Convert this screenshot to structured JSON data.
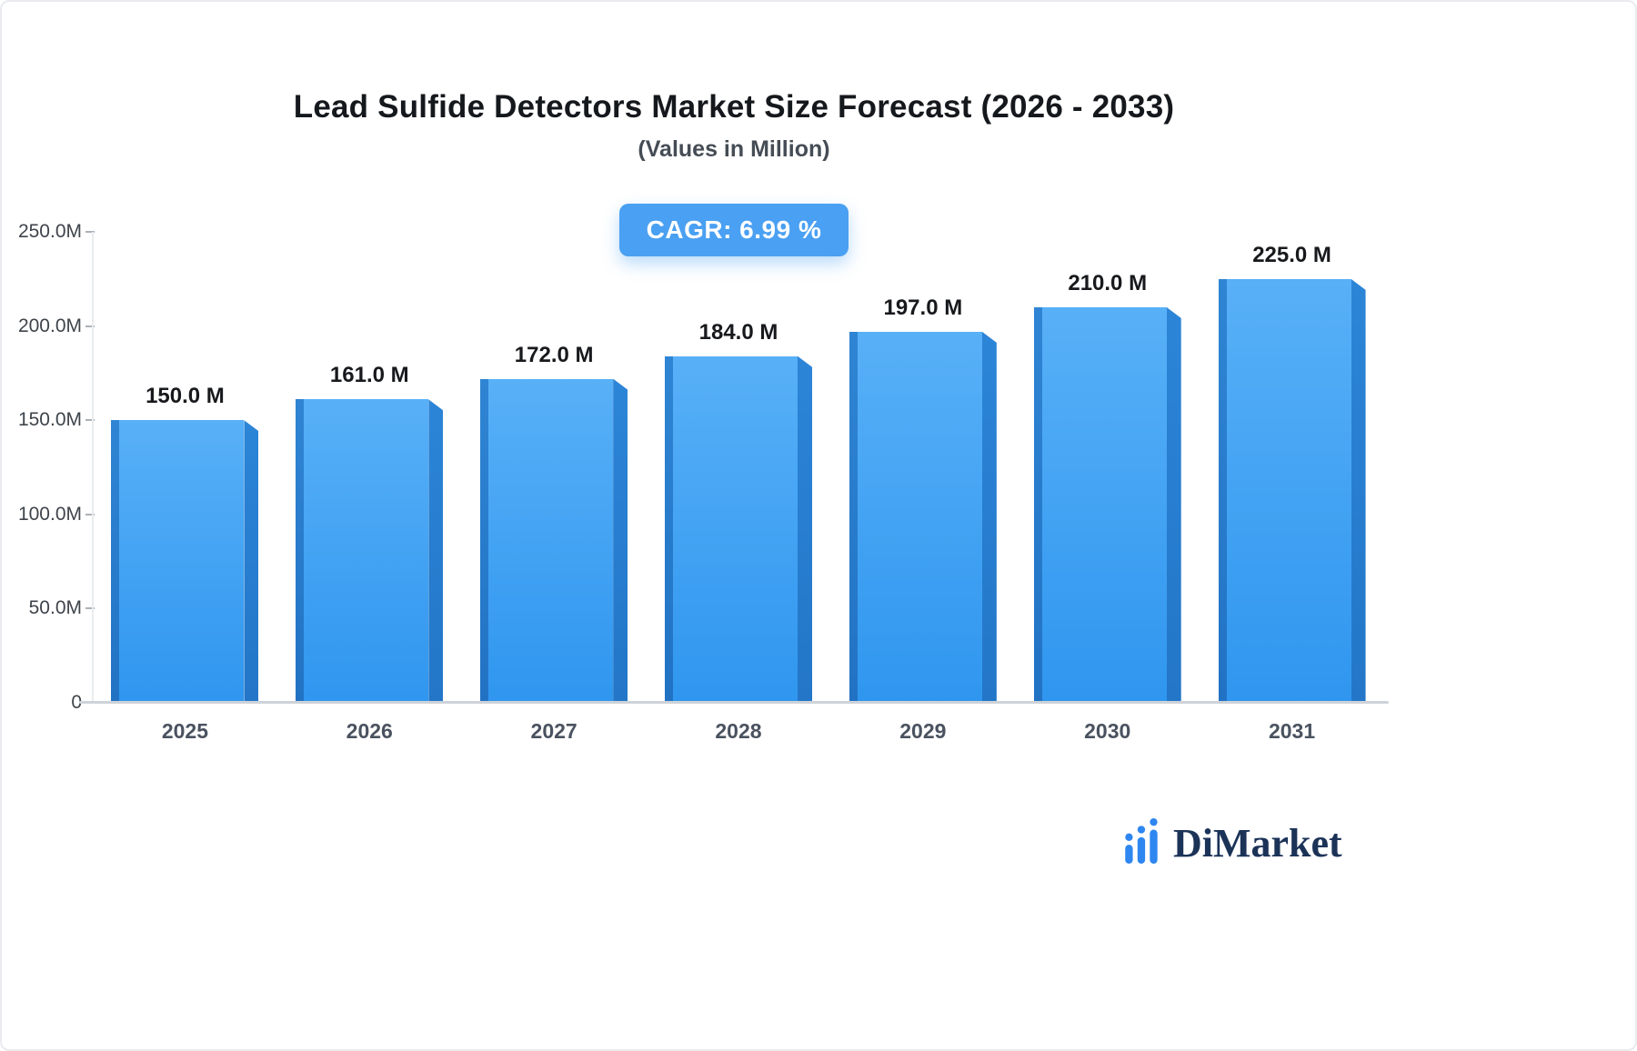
{
  "header": {
    "title": "Lead Sulfide Detectors Market Size Forecast (2026 - 2033)",
    "subtitle": "(Values in Million)"
  },
  "badge": {
    "label": "CAGR: 6.99 %"
  },
  "chart_data": {
    "type": "bar",
    "title": "Lead Sulfide Detectors Market Size Forecast (2026 - 2033)",
    "subtitle": "(Values in Million)",
    "unit": "Million",
    "categories": [
      "2025",
      "2026",
      "2027",
      "2028",
      "2029",
      "2030",
      "2031"
    ],
    "values": [
      150.0,
      161.0,
      172.0,
      184.0,
      197.0,
      210.0,
      225.0
    ],
    "value_labels": [
      "150.0 M",
      "161.0 M",
      "172.0 M",
      "184.0 M",
      "197.0 M",
      "210.0 M",
      "225.0 M"
    ],
    "ylim": [
      0,
      250
    ],
    "y_ticks": [
      {
        "value": 250,
        "label": "250.0M"
      },
      {
        "value": 200,
        "label": "200.0M"
      },
      {
        "value": 150,
        "label": "150.0M"
      },
      {
        "value": 100,
        "label": "100.0M"
      },
      {
        "value": 50,
        "label": "50.0M"
      },
      {
        "value": 0,
        "label": "0"
      }
    ],
    "grid": false,
    "legend_position": "none",
    "bar_colors": {
      "face_top": "#58b0f7",
      "face_bottom": "#2f96ef",
      "left_edge": "#2272c4",
      "right_side": "#2c85d7"
    },
    "cagr": "6.99 %"
  },
  "logo": {
    "text": "DiMarket",
    "icon": "bar-chart-logo-icon",
    "color": "#1c3358",
    "accent": "#2e86f0"
  }
}
